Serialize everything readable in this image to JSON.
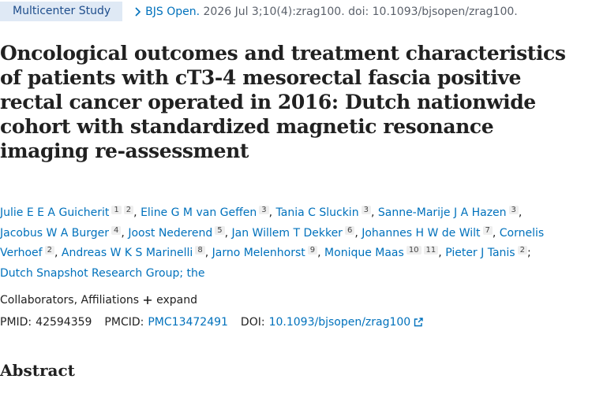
{
  "badge": "Multicenter Study",
  "citation": {
    "journal": "BJS Open.",
    "details": "2026 Jul 3;10(4):zrag100. doi: 10.1093/bjsopen/zrag100."
  },
  "title": "Oncological outcomes and treatment characteristics of patients with cT3-4 mesorectal fascia positive rectal cancer operated in 2016: Dutch nationwide cohort with standardized magnetic resonance imaging re-assessment",
  "authors": [
    {
      "name": "Julie E E A Guicherit",
      "affiliations": [
        "1",
        "2"
      ],
      "punct": ","
    },
    {
      "name": "Eline G M van Geffen",
      "affiliations": [
        "3"
      ],
      "punct": ","
    },
    {
      "name": "Tania C Sluckin",
      "affiliations": [
        "3"
      ],
      "punct": ","
    },
    {
      "name": "Sanne-Marije J A Hazen",
      "affiliations": [
        "3"
      ],
      "punct": ","
    },
    {
      "name": "Jacobus W A Burger",
      "affiliations": [
        "4"
      ],
      "punct": ","
    },
    {
      "name": "Joost Nederend",
      "affiliations": [
        "5"
      ],
      "punct": ","
    },
    {
      "name": "Jan Willem T Dekker",
      "affiliations": [
        "6"
      ],
      "punct": ","
    },
    {
      "name": "Johannes H W de Wilt",
      "affiliations": [
        "7"
      ],
      "punct": ","
    },
    {
      "name": "Cornelis Verhoef",
      "affiliations": [
        "2"
      ],
      "punct": ","
    },
    {
      "name": "Andreas W K S Marinelli",
      "affiliations": [
        "8"
      ],
      "punct": ","
    },
    {
      "name": "Jarno Melenhorst",
      "affiliations": [
        "9"
      ],
      "punct": ","
    },
    {
      "name": "Monique Maas",
      "affiliations": [
        "10",
        "11"
      ],
      "punct": ","
    },
    {
      "name": "Pieter J Tanis",
      "affiliations": [
        "2"
      ],
      "punct": ";"
    },
    {
      "name": "Dutch Snapshot Research Group; the"
    }
  ],
  "collaborators": {
    "label": "Collaborators, Affiliations",
    "expand": "expand"
  },
  "identifiers": {
    "pmid_label": "PMID:",
    "pmid": "42594359",
    "pmcid_label": "PMCID:",
    "pmcid": "PMC13472491",
    "doi_label": "DOI:",
    "doi": "10.1093/bjsopen/zrag100"
  },
  "abstract_heading": "Abstract"
}
